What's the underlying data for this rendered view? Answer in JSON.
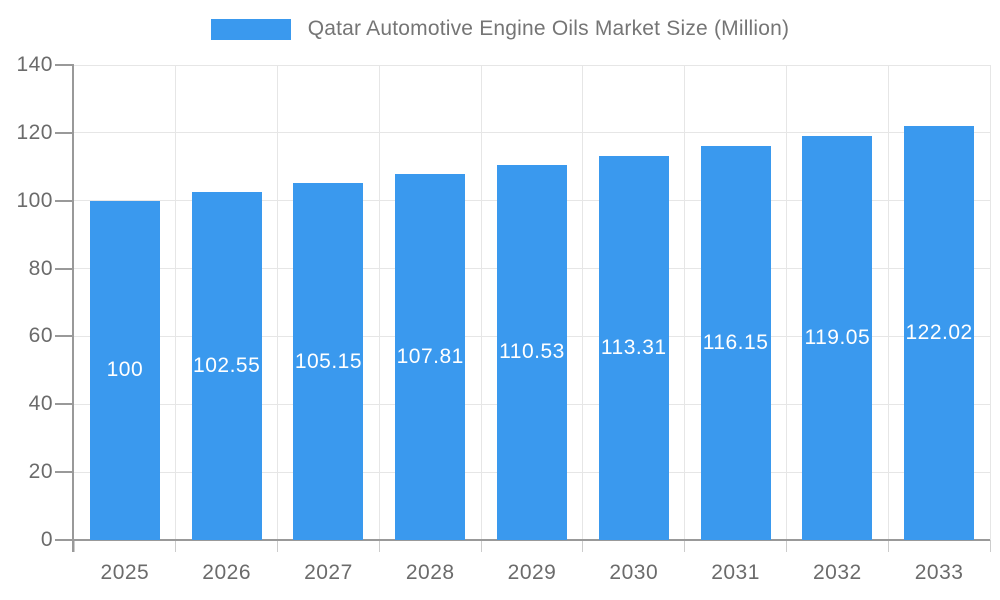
{
  "chart_data": {
    "type": "bar",
    "legend": "Qatar Automotive Engine Oils Market Size (Million)",
    "legend_position": "top",
    "categories": [
      "2025",
      "2026",
      "2027",
      "2028",
      "2029",
      "2030",
      "2031",
      "2032",
      "2033"
    ],
    "values": [
      100,
      102.55,
      105.15,
      107.81,
      110.53,
      113.31,
      116.15,
      119.05,
      122.02
    ],
    "value_labels": [
      "100",
      "102.55",
      "105.15",
      "107.81",
      "110.53",
      "113.31",
      "116.15",
      "119.05",
      "122.02"
    ],
    "title": "",
    "xlabel": "",
    "ylabel": "",
    "ylim": [
      0,
      140
    ],
    "yticks": [
      0,
      20,
      40,
      60,
      80,
      100,
      120,
      140
    ],
    "grid": true,
    "colors": {
      "bar": "#3a99ee",
      "gridline": "#e6e6e6",
      "axis_line": "#999999",
      "x_tick_mark": "#cccccc",
      "tick_label_text": "#6b6b6b",
      "legend_text": "#757575",
      "bar_value_text": "#ffffff",
      "background": "#ffffff"
    }
  }
}
